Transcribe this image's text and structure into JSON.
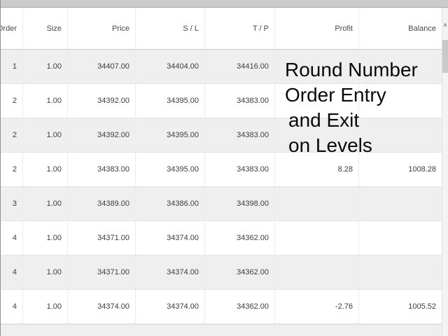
{
  "table": {
    "columns": [
      {
        "key": "order",
        "label": "Order"
      },
      {
        "key": "size",
        "label": "Size"
      },
      {
        "key": "price",
        "label": "Price"
      },
      {
        "key": "sl",
        "label": "S / L"
      },
      {
        "key": "tp",
        "label": "T / P"
      },
      {
        "key": "profit",
        "label": "Profit"
      },
      {
        "key": "balance",
        "label": "Balance"
      }
    ],
    "rows": [
      [
        "1",
        "1.00",
        "34407.00",
        "34404.00",
        "34416.00",
        "",
        ""
      ],
      [
        "2",
        "1.00",
        "34392.00",
        "34395.00",
        "34383.00",
        "",
        ""
      ],
      [
        "2",
        "1.00",
        "34392.00",
        "34395.00",
        "34383.00",
        "",
        ""
      ],
      [
        "2",
        "1.00",
        "34383.00",
        "34395.00",
        "34383.00",
        "8.28",
        "1008.28"
      ],
      [
        "3",
        "1.00",
        "34389.00",
        "34386.00",
        "34398.00",
        "",
        ""
      ],
      [
        "4",
        "1.00",
        "34371.00",
        "34374.00",
        "34362.00",
        "",
        ""
      ],
      [
        "4",
        "1.00",
        "34371.00",
        "34374.00",
        "34362.00",
        "",
        ""
      ],
      [
        "4",
        "1.00",
        "34374.00",
        "34374.00",
        "34362.00",
        "-2.76",
        "1005.52"
      ]
    ]
  },
  "overlay": {
    "lines": [
      "Round Number",
      "Order Entry",
      "and Exit",
      "on Levels"
    ]
  },
  "scrollbar": {
    "up_arrow_glyph": "∧"
  },
  "colors": {
    "row_alt": "#efeff0",
    "header_text": "#4a4a4a",
    "value_text": "#3c3c46",
    "overlay_text": "#0a0a0a",
    "scroll_thumb": "#c9c9cd"
  }
}
